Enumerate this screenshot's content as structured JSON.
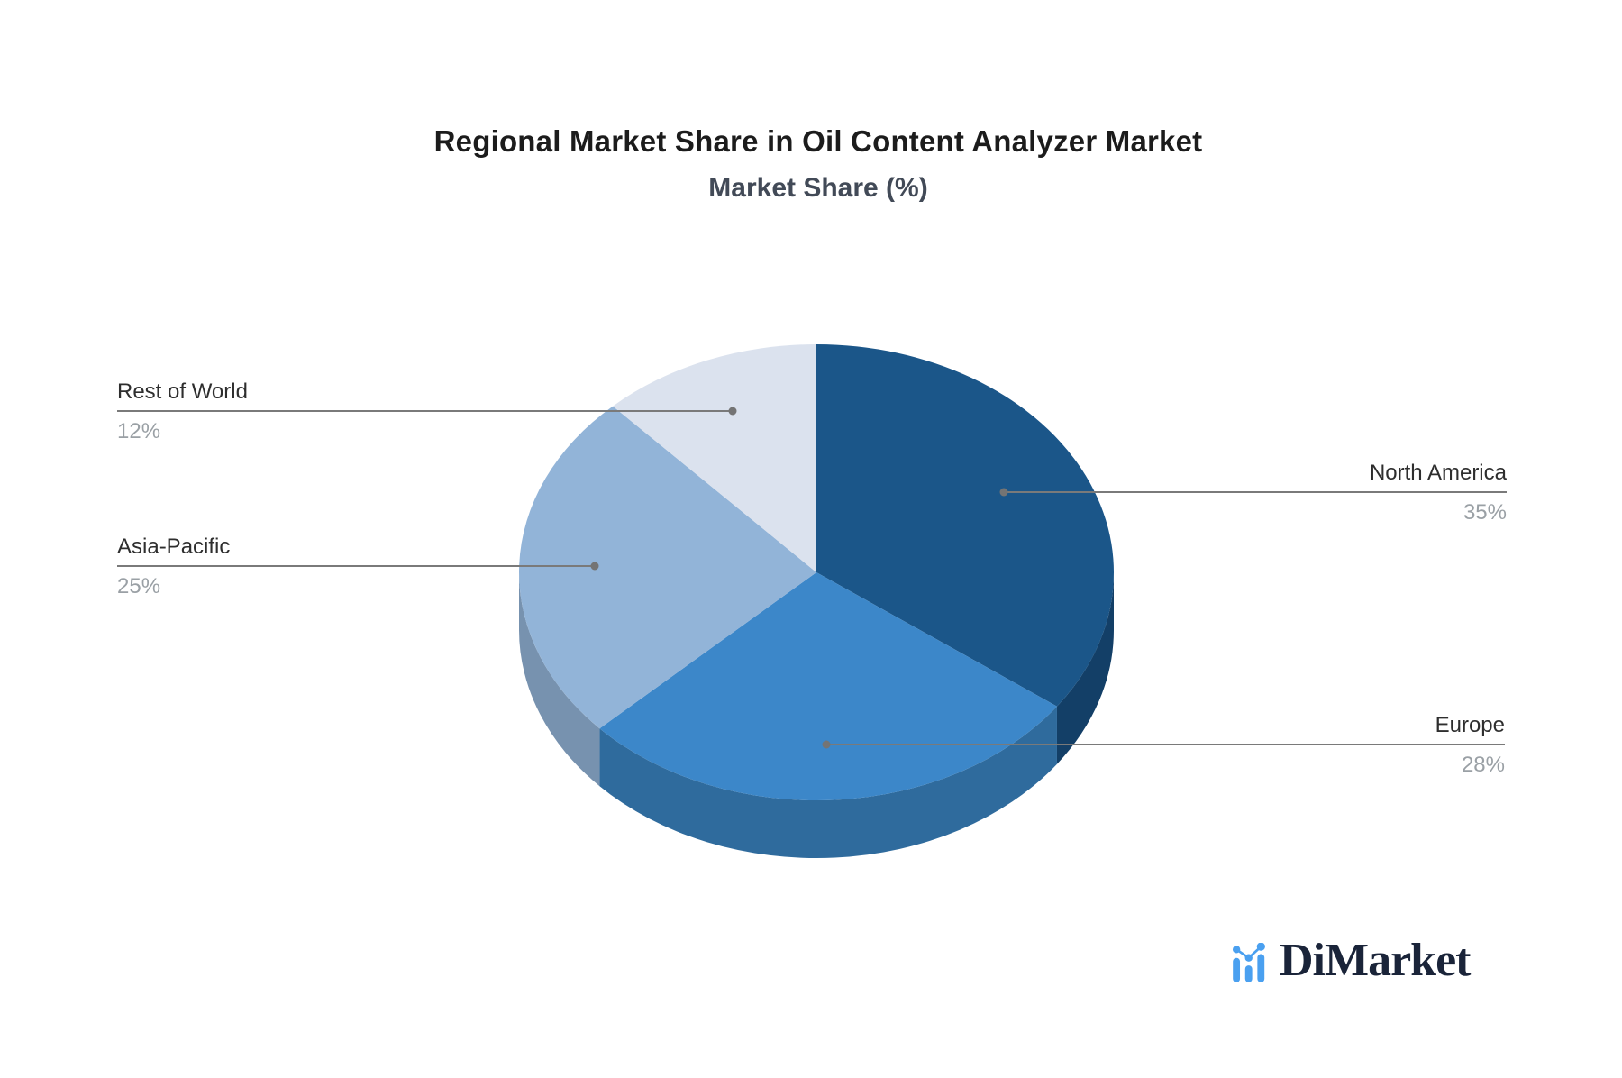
{
  "header": {
    "title": "Regional Market Share in Oil Content Analyzer Market",
    "subtitle": "Market Share (%)"
  },
  "chart_data": {
    "type": "pie",
    "style": "3d",
    "title": "Regional Market Share in Oil Content Analyzer Market",
    "subtitle": "Market Share (%)",
    "unit": "%",
    "start_angle_deg": -90,
    "direction": "clockwise",
    "legend": "none",
    "label_style": "callout-leader-lines",
    "slices": [
      {
        "label": "North America",
        "value": 35,
        "display": "35%",
        "color": "#1B5689",
        "side_color": "#133F67"
      },
      {
        "label": "Europe",
        "value": 28,
        "display": "28%",
        "color": "#3C87C9",
        "side_color": "#2F6B9D"
      },
      {
        "label": "Asia-Pacific",
        "value": 25,
        "display": "25%",
        "color": "#92B4D8",
        "side_color": "#7792AF"
      },
      {
        "label": "Rest of World",
        "value": 12,
        "display": "12%",
        "color": "#DBE2EE",
        "side_color": "#B9C5D6"
      }
    ]
  },
  "branding": {
    "logo_text": "DiMarket",
    "logo_icon": "bar-line-chart-icon",
    "logo_text_color": "#1A2439",
    "logo_icon_color": "#4AA0F0"
  },
  "colors": {
    "background": "#FFFFFF",
    "leader_line": "#7A7A7A",
    "leader_dot": "#747474",
    "label_text": "#2E2E2E",
    "percent_text": "#9AA0A5",
    "title_text": "#1C1C1C",
    "subtitle_text": "#424A57"
  }
}
